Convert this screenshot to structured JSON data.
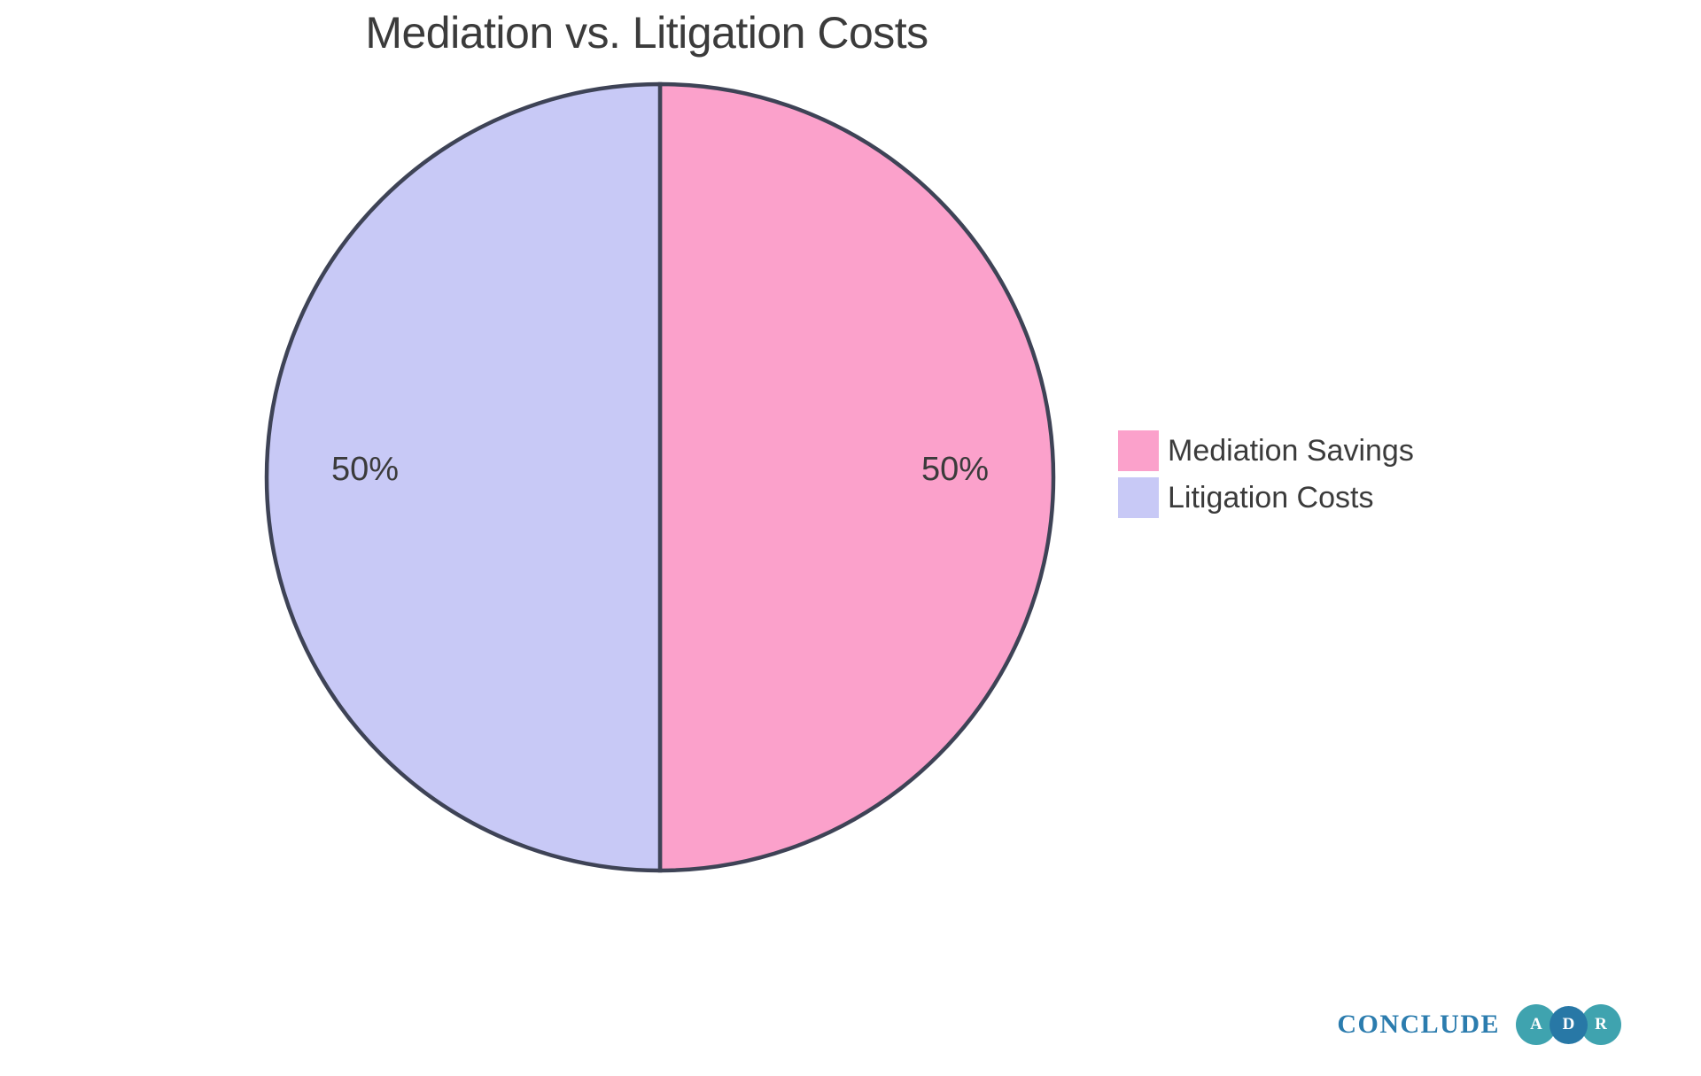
{
  "chart_data": {
    "type": "pie",
    "title": "Mediation vs. Litigation Costs",
    "labels": [
      "Mediation Savings",
      "Litigation Costs"
    ],
    "values": [
      50,
      50
    ],
    "slice_labels": [
      "50%",
      "50%"
    ],
    "colors": [
      "#FBA1CB",
      "#C8C9F6"
    ],
    "border_color": "#3E4356",
    "border_width": 4.5,
    "legend_position": "right",
    "start_angle_deg": -90,
    "direction": "clockwise",
    "text_color": "#3B3B3B"
  },
  "watermark": {
    "brand": "CONCLUDE",
    "brand_color": "#2B7CAE",
    "badges": [
      {
        "letter": "A",
        "color": "#3FA3AF"
      },
      {
        "letter": "D",
        "color": "#2878A6"
      },
      {
        "letter": "R",
        "color": "#3FA3AF"
      }
    ]
  }
}
